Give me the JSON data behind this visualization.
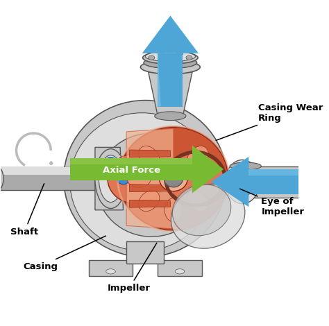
{
  "background_color": "#ffffff",
  "labels": {
    "shaft": "Shaft",
    "casing": "Casing",
    "impeller": "Impeller",
    "axial_force": "Axial Force",
    "casing_wear_ring": "Casing Wear\nRing",
    "eye_of_impeller": "Eye of\nImpeller"
  },
  "colors": {
    "gray_dark": "#888888",
    "gray_med": "#aaaaaa",
    "gray_light": "#c8c8c8",
    "gray_lighter": "#dedede",
    "gray_outline": "#555555",
    "gray_shadow": "#999999",
    "impeller_main": "#cc5533",
    "impeller_light": "#dd7755",
    "impeller_lighter": "#ee9977",
    "impeller_pale": "#f0b090",
    "bearing_blue": "#4488cc",
    "bearing_light": "#77aadd",
    "wear_ring_dark": "#773322",
    "blue_arrow": "#4da6d6",
    "blue_arrow_light": "#88ccee",
    "green_arrow": "#77bb33",
    "green_arrow_light": "#99cc55",
    "rotation_gray": "#bbbbbb",
    "black": "#111111"
  }
}
